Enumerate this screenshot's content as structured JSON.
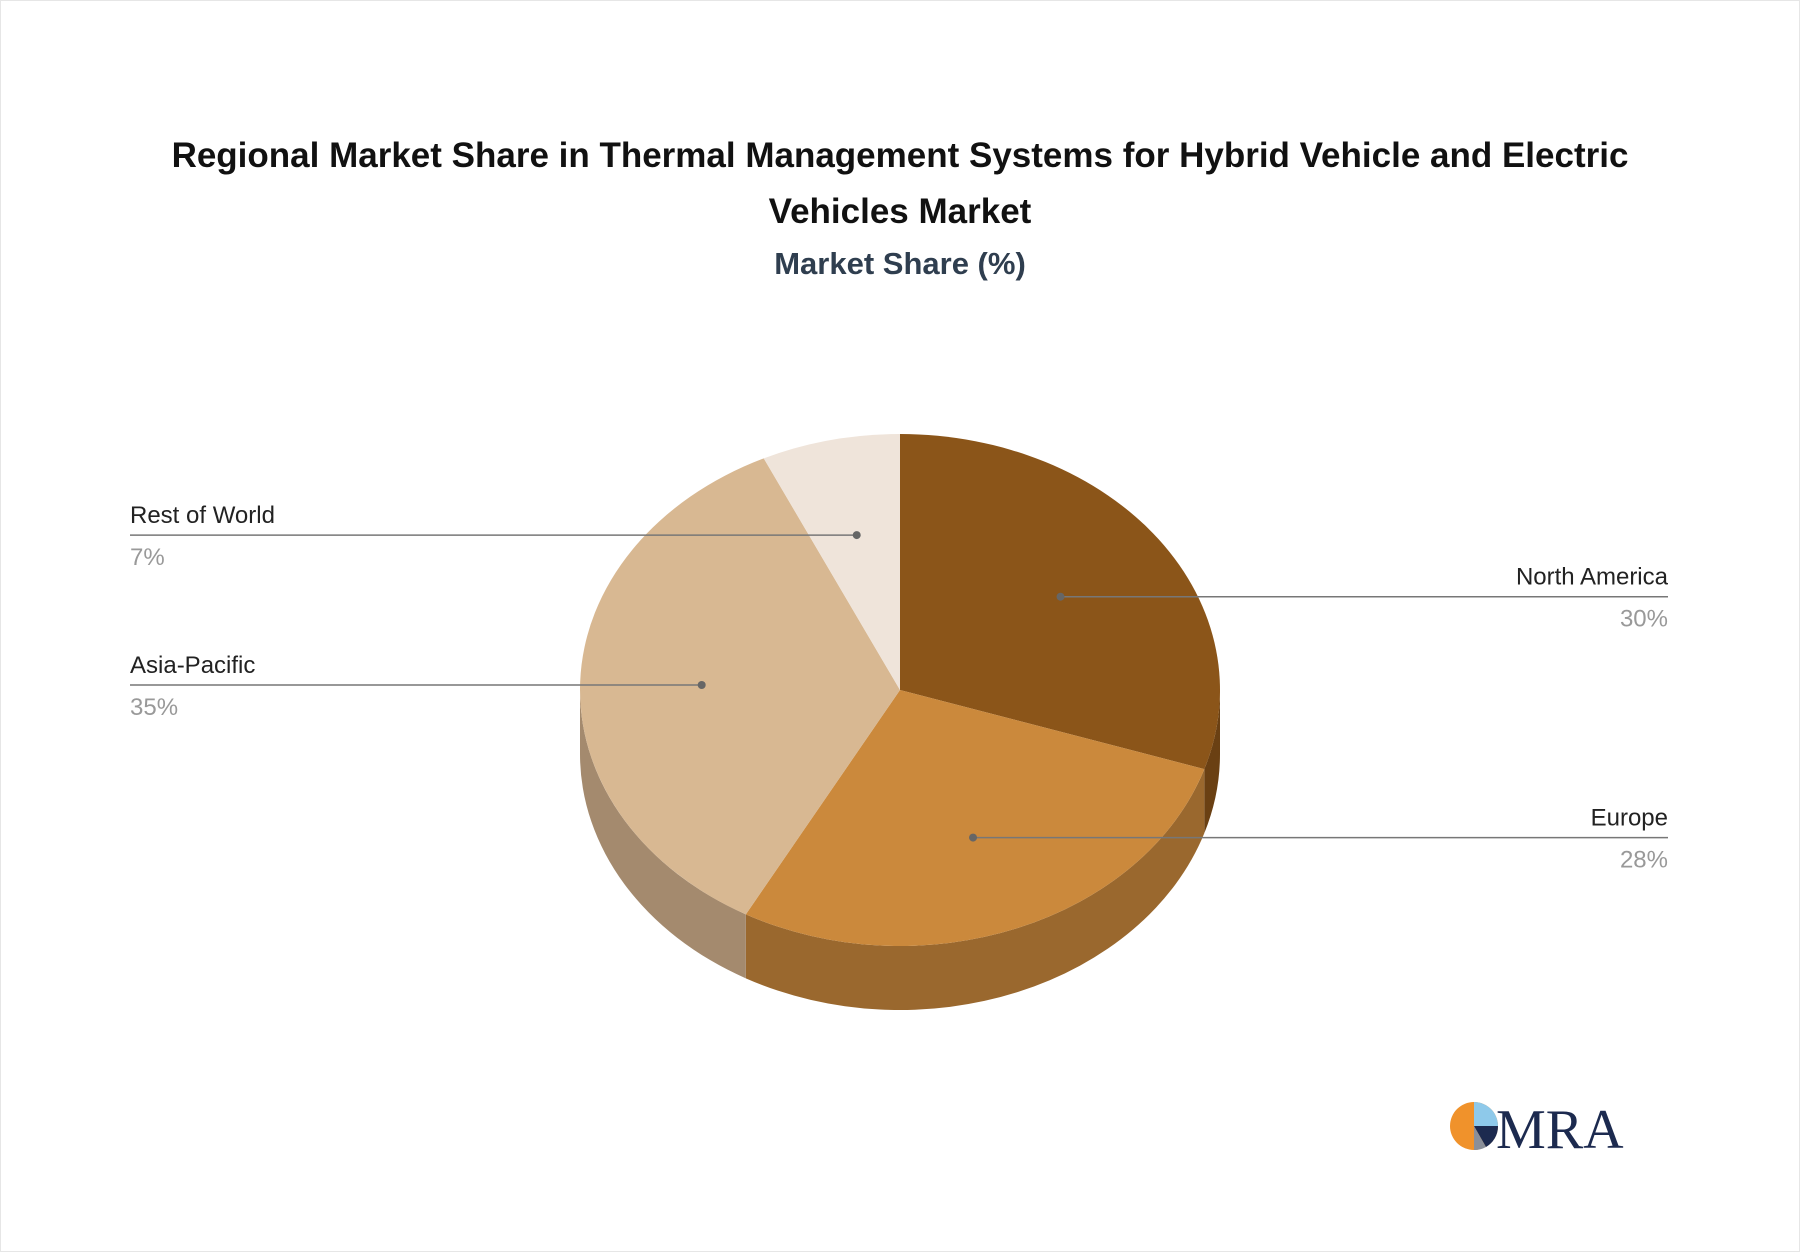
{
  "header": {
    "title": "Regional Market Share in Thermal Management Systems for Hybrid Vehicle and Electric Vehicles Market",
    "subtitle": "Market Share (%)"
  },
  "chart_data": {
    "type": "pie",
    "title": "Regional Market Share in Thermal Management Systems for Hybrid Vehicle and Electric Vehicles Market",
    "subtitle": "Market Share (%)",
    "unit": "%",
    "slices": [
      {
        "label": "North America",
        "value": 30,
        "value_label": "30%",
        "color": "#8B5519",
        "side_color": "#6A4013",
        "label_side": "right"
      },
      {
        "label": "Europe",
        "value": 28,
        "value_label": "28%",
        "color": "#CB893C",
        "side_color": "#9A682E",
        "label_side": "right"
      },
      {
        "label": "Asia-Pacific",
        "value": 35,
        "value_label": "35%",
        "color": "#D8B892",
        "side_color": "#A48A6E",
        "label_side": "left"
      },
      {
        "label": "Rest of World",
        "value": 7,
        "value_label": "7%",
        "color": "#EFE4DA",
        "side_color": "#B5ACA4",
        "label_side": "left"
      }
    ]
  },
  "brand": {
    "logo_text": "MRA",
    "logo_icon": "mra-pie-icon",
    "colors": {
      "orange": "#F0922B",
      "navy": "#1C2A4F",
      "light_blue": "#8EC9EA",
      "gray": "#8A8F99"
    }
  }
}
